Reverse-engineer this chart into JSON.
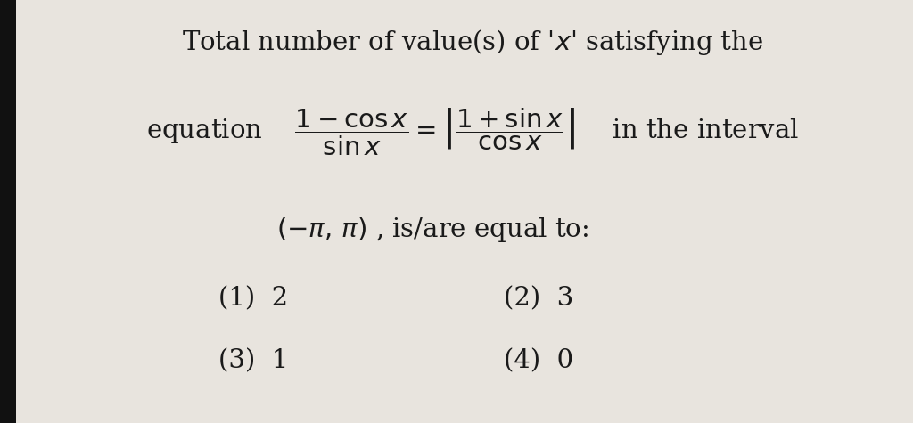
{
  "background_color": "#e8e4de",
  "left_border_color": "#1a1a1a",
  "text_color": "#1a1a1a",
  "figsize": [
    10.24,
    4.75
  ],
  "dpi": 100,
  "title_fontsize": 21,
  "eq_fontsize": 21,
  "body_fontsize": 21,
  "opt_fontsize": 21
}
